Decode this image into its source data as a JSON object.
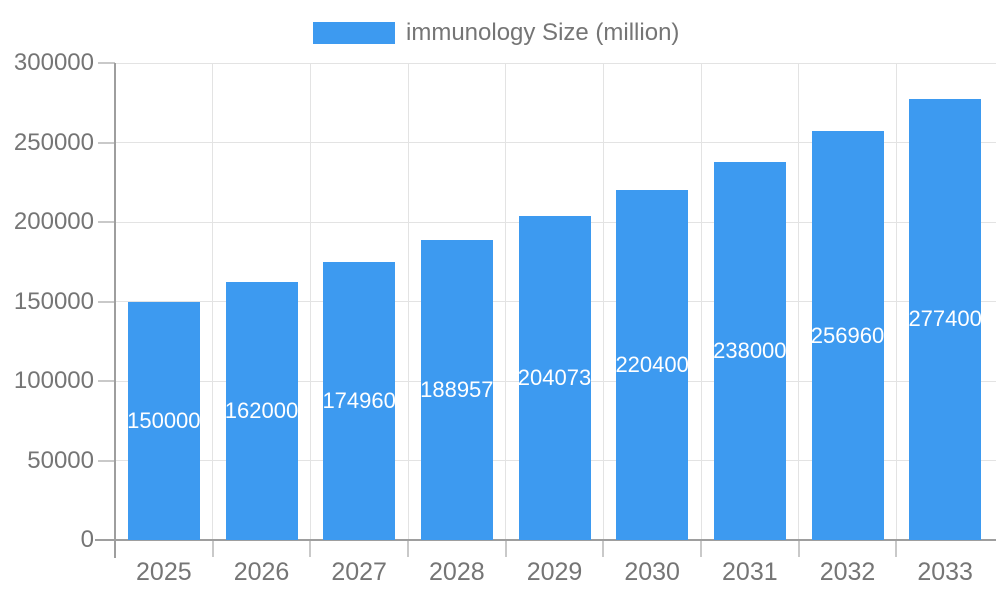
{
  "legend": {
    "label": "immunology Size (million)"
  },
  "colors": {
    "bar": "#3d9af0",
    "grid": "#e3e3e3",
    "axis": "#9e9e9e",
    "tick_text": "#757575",
    "bar_label_text": "#ffffff",
    "background": "#ffffff"
  },
  "chart_data": {
    "type": "bar",
    "title": "",
    "xlabel": "",
    "ylabel": "",
    "categories": [
      "2025",
      "2026",
      "2027",
      "2028",
      "2029",
      "2030",
      "2031",
      "2032",
      "2033"
    ],
    "values": [
      150000,
      162000,
      174960,
      188957,
      204073,
      220400,
      238000,
      256960,
      277400
    ],
    "bar_value_labels": [
      "150000",
      "162000",
      "174960",
      "188957",
      "204073",
      "220400",
      "238000",
      "256960",
      "277400"
    ],
    "series_name": "immunology Size (million)",
    "ylim": [
      0,
      300000
    ],
    "yticks": [
      0,
      50000,
      100000,
      150000,
      200000,
      250000,
      300000
    ],
    "ytick_labels": [
      "0",
      "50000",
      "100000",
      "150000",
      "200000",
      "250000",
      "300000"
    ],
    "grid": true,
    "legend_position": "top-center",
    "bar_labels_position": "center-inside-clipped"
  }
}
